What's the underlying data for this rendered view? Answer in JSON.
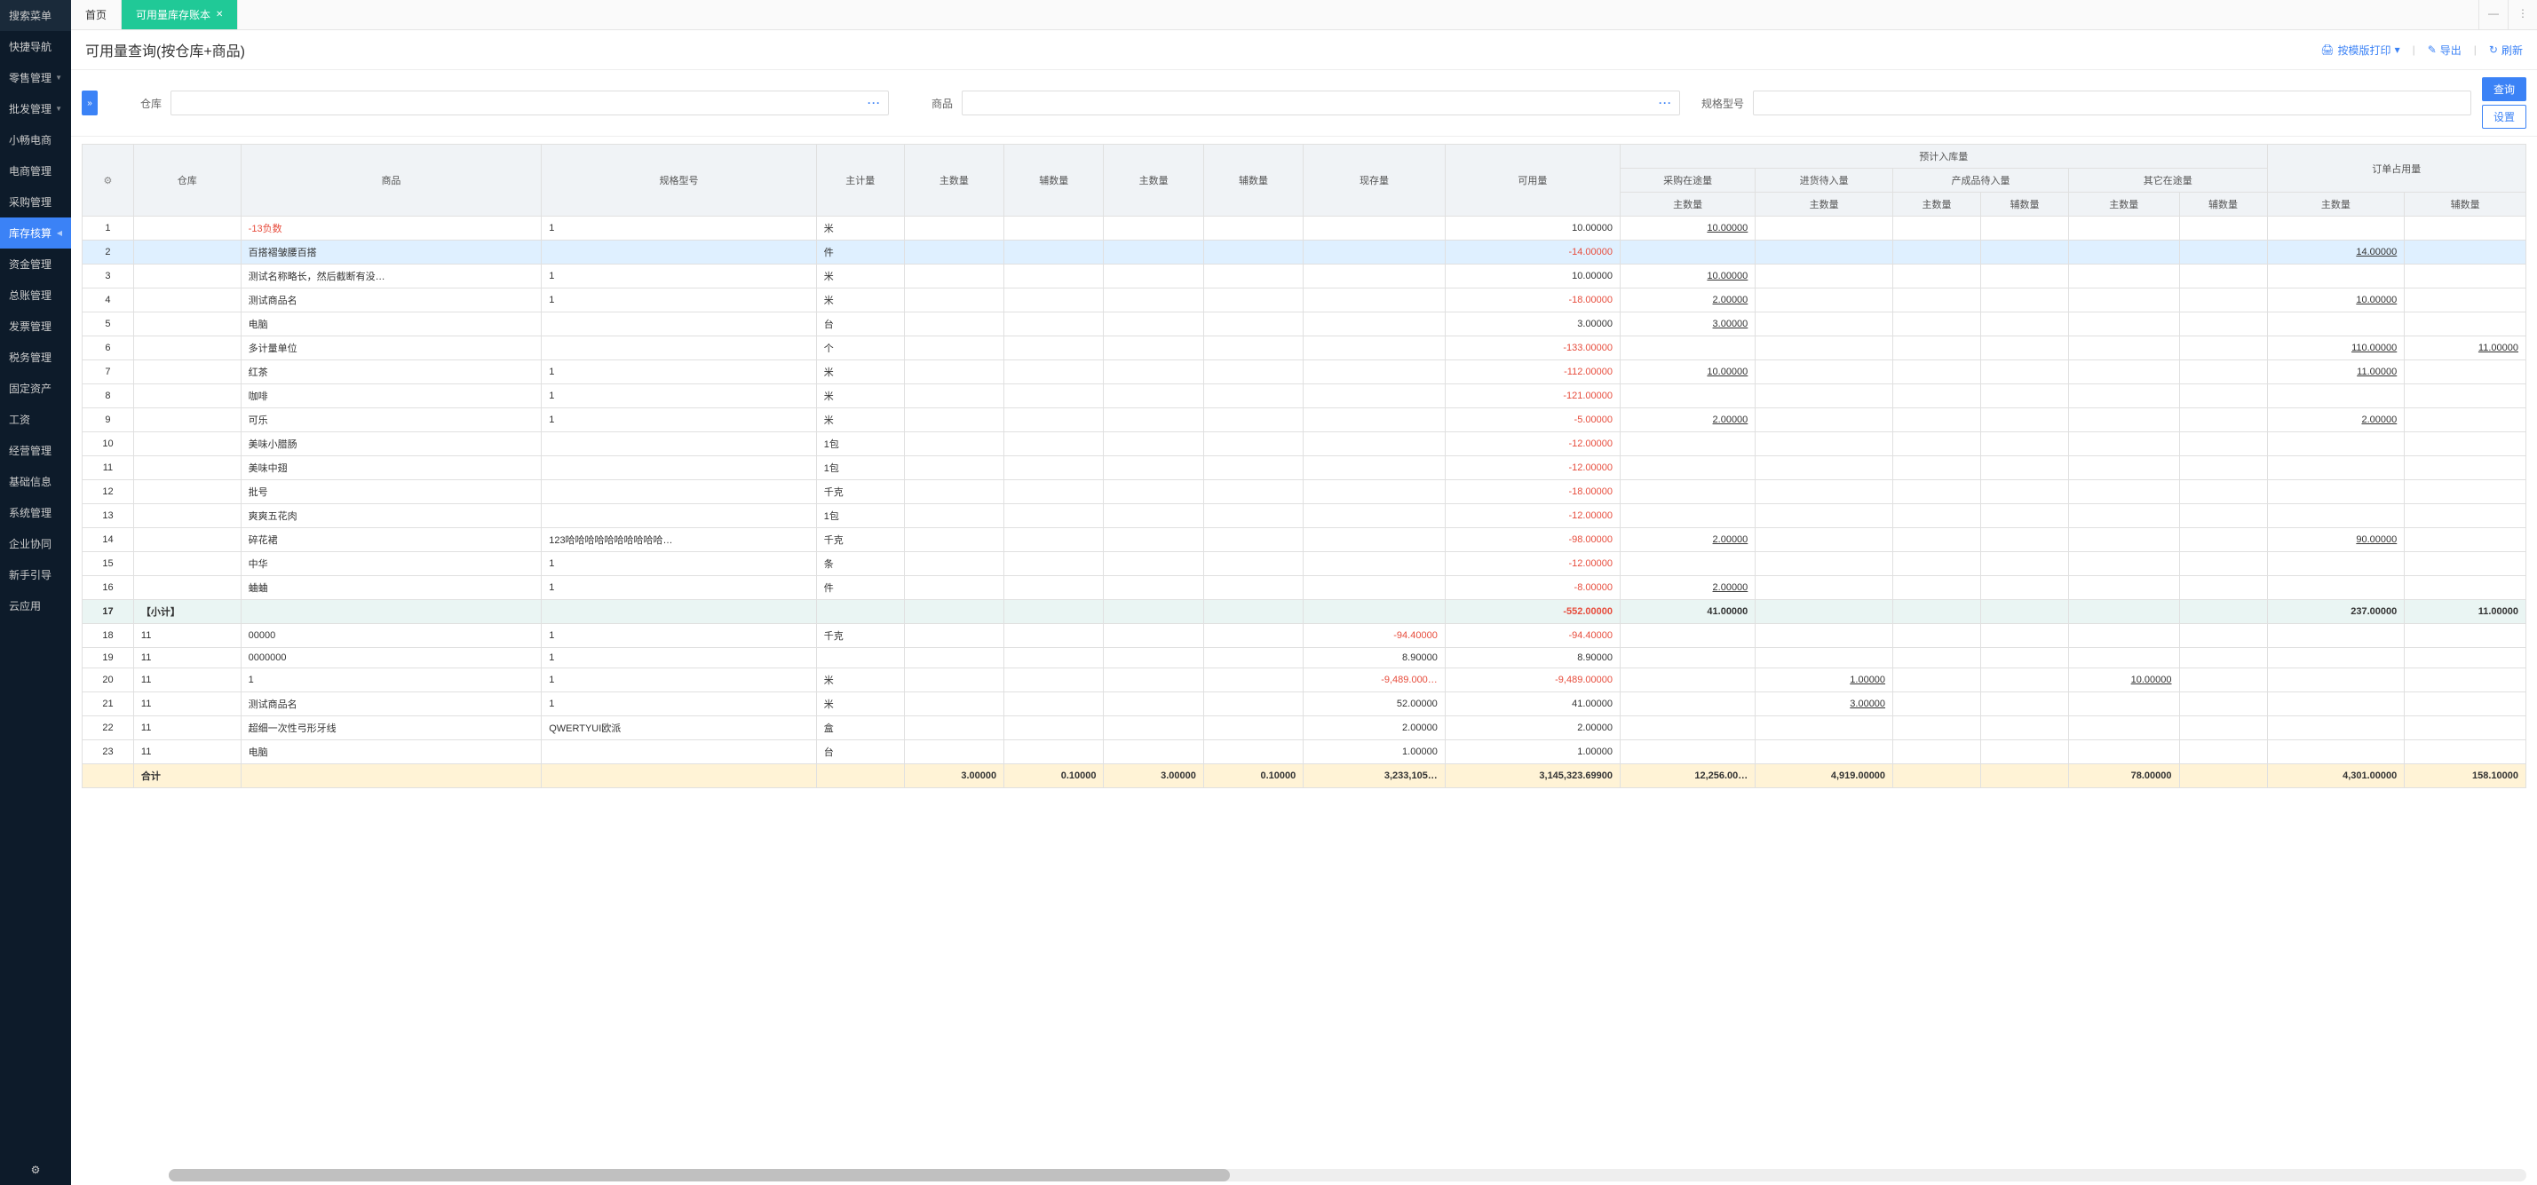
{
  "sidebar": {
    "items": [
      {
        "label": "搜索菜单",
        "caret": false
      },
      {
        "label": "快捷导航",
        "caret": false
      },
      {
        "label": "零售管理",
        "caret": true
      },
      {
        "label": "批发管理",
        "caret": true
      },
      {
        "label": "小畅电商",
        "caret": false
      },
      {
        "label": "电商管理",
        "caret": false
      },
      {
        "label": "采购管理",
        "caret": false
      },
      {
        "label": "库存核算",
        "caret": false,
        "active": true
      },
      {
        "label": "资金管理",
        "caret": false
      },
      {
        "label": "总账管理",
        "caret": false
      },
      {
        "label": "发票管理",
        "caret": false
      },
      {
        "label": "税务管理",
        "caret": false
      },
      {
        "label": "固定资产",
        "caret": false
      },
      {
        "label": "工资",
        "caret": false
      },
      {
        "label": "经营管理",
        "caret": false
      },
      {
        "label": "基础信息",
        "caret": false
      },
      {
        "label": "系统管理",
        "caret": false
      },
      {
        "label": "企业协同",
        "caret": false
      },
      {
        "label": "新手引导",
        "caret": false
      },
      {
        "label": "云应用",
        "caret": false
      }
    ]
  },
  "tabs": [
    {
      "label": "首页",
      "active": false,
      "closable": false
    },
    {
      "label": "可用量库存账本",
      "active": true,
      "closable": true
    }
  ],
  "header": {
    "title": "可用量查询(按仓库+商品)",
    "actions": {
      "print": "按模版打印",
      "export": "导出",
      "refresh": "刷新"
    }
  },
  "filters": {
    "warehouse": "仓库",
    "product": "商品",
    "spec": "规格型号",
    "query": "查询",
    "settings": "设置"
  },
  "table": {
    "headers": {
      "gear": "⚙",
      "warehouse": "仓库",
      "product": "商品",
      "spec": "规格型号",
      "mainUnit": "主计量",
      "mainQty": "主数量",
      "auxQty": "辅数量",
      "mainQty2": "主数量",
      "auxQty2": "辅数量",
      "stock": "现存量",
      "available": "可用量",
      "expectedIn": "预计入库量",
      "purchaseInTransit": "采购在途量",
      "arrivalPending": "进货待入量",
      "finishedPending": "产成品待入量",
      "otherInTransit": "其它在途量",
      "orderOccupy": "订单占用量"
    },
    "rows": [
      {
        "n": 1,
        "wh": "",
        "prod": "-13负数",
        "prodNeg": true,
        "spec": "1",
        "unit": "米",
        "avail": "10.00000",
        "buy": "10.00000"
      },
      {
        "n": 2,
        "wh": "",
        "prod": "百搭褶皱腰百搭",
        "spec": "",
        "unit": "件",
        "avail": "-14.00000",
        "availNeg": true,
        "occ": "14.00000",
        "hl": true
      },
      {
        "n": 3,
        "wh": "",
        "prod": "测试名称略长，然后截断有没…",
        "spec": "1",
        "unit": "米",
        "avail": "10.00000",
        "buy": "10.00000"
      },
      {
        "n": 4,
        "wh": "",
        "prod": "测试商品名",
        "spec": "1",
        "unit": "米",
        "avail": "-18.00000",
        "availNeg": true,
        "buy": "2.00000",
        "occ": "10.00000"
      },
      {
        "n": 5,
        "wh": "",
        "prod": "电脑",
        "spec": "",
        "unit": "台",
        "avail": "3.00000",
        "buy": "3.00000"
      },
      {
        "n": 6,
        "wh": "",
        "prod": "多计量单位",
        "spec": "",
        "unit": "个",
        "avail": "-133.00000",
        "availNeg": true,
        "occ": "110.00000",
        "occ2": "11.00000"
      },
      {
        "n": 7,
        "wh": "",
        "prod": "红茶",
        "spec": "1",
        "unit": "米",
        "avail": "-112.00000",
        "availNeg": true,
        "buy": "10.00000",
        "occ": "11.00000"
      },
      {
        "n": 8,
        "wh": "",
        "prod": "咖啡",
        "spec": "1",
        "unit": "米",
        "avail": "-121.00000",
        "availNeg": true
      },
      {
        "n": 9,
        "wh": "",
        "prod": "可乐",
        "spec": "1",
        "unit": "米",
        "avail": "-5.00000",
        "availNeg": true,
        "buy": "2.00000",
        "occ": "2.00000"
      },
      {
        "n": 10,
        "wh": "",
        "prod": "美味小腊肠",
        "spec": "",
        "unit": "1包",
        "avail": "-12.00000",
        "availNeg": true
      },
      {
        "n": 11,
        "wh": "",
        "prod": "美味中翅",
        "spec": "",
        "unit": "1包",
        "avail": "-12.00000",
        "availNeg": true
      },
      {
        "n": 12,
        "wh": "",
        "prod": "批号",
        "spec": "",
        "unit": "千克",
        "avail": "-18.00000",
        "availNeg": true
      },
      {
        "n": 13,
        "wh": "",
        "prod": "爽爽五花肉",
        "spec": "",
        "unit": "1包",
        "avail": "-12.00000",
        "availNeg": true
      },
      {
        "n": 14,
        "wh": "",
        "prod": "碎花裙",
        "spec": "123哈哈哈哈哈哈哈哈哈哈…",
        "unit": "千克",
        "avail": "-98.00000",
        "availNeg": true,
        "buy": "2.00000",
        "occ": "90.00000"
      },
      {
        "n": 15,
        "wh": "",
        "prod": "中华",
        "spec": "1",
        "unit": "条",
        "avail": "-12.00000",
        "availNeg": true
      },
      {
        "n": 16,
        "wh": "",
        "prod": "蛐蛐",
        "spec": "1",
        "unit": "件",
        "avail": "-8.00000",
        "availNeg": true,
        "buy": "2.00000"
      },
      {
        "n": 17,
        "wh": "【小计】",
        "subtotal": true,
        "avail": "-552.00000",
        "availNeg": true,
        "buy": "41.00000",
        "occ": "237.00000",
        "occ2": "11.00000"
      },
      {
        "n": 18,
        "wh": "11",
        "prod": "00000",
        "spec": "1",
        "unit": "千克",
        "stock": "-94.40000",
        "stockNeg": true,
        "avail": "-94.40000",
        "availNeg": true
      },
      {
        "n": 19,
        "wh": "11",
        "prod": "0000000",
        "spec": "1",
        "unit": "",
        "stock": "8.90000",
        "avail": "8.90000"
      },
      {
        "n": 20,
        "wh": "11",
        "prod": "1",
        "spec": "1",
        "unit": "米",
        "stock": "-9,489.000…",
        "stockNeg": true,
        "avail": "-9,489.00000",
        "availNeg": true,
        "arr": "1.00000",
        "other": "10.00000"
      },
      {
        "n": 21,
        "wh": "11",
        "prod": "测试商品名",
        "spec": "1",
        "unit": "米",
        "stock": "52.00000",
        "avail": "41.00000",
        "arr": "3.00000"
      },
      {
        "n": 22,
        "wh": "11",
        "prod": "超细一次性弓形牙线",
        "spec": "QWERTYUI欧派",
        "unit": "盒",
        "stock": "2.00000",
        "avail": "2.00000"
      },
      {
        "n": 23,
        "wh": "11",
        "prod": "电脑",
        "spec": "",
        "unit": "台",
        "stock": "1.00000",
        "avail": "1.00000"
      }
    ],
    "total": {
      "label": "合计",
      "c1": "3.00000",
      "c2": "0.10000",
      "c3": "3.00000",
      "c4": "0.10000",
      "stock": "3,233,105…",
      "avail": "3,145,323.69900",
      "buy": "12,256.00…",
      "arr": "4,919.00000",
      "other": "78.00000",
      "occ": "4,301.00000",
      "occ2": "158.10000"
    }
  }
}
